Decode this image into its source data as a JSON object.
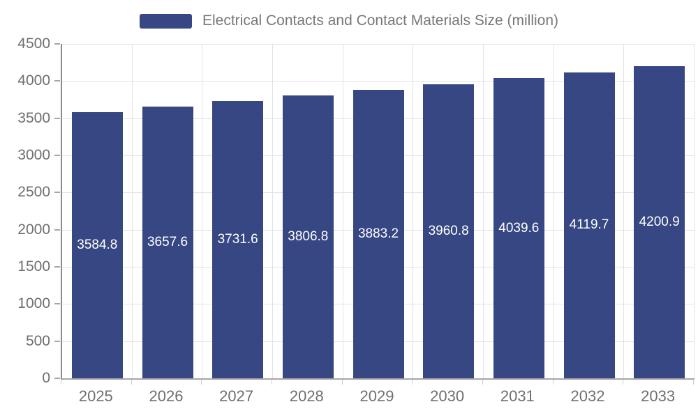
{
  "chart_data": {
    "type": "bar",
    "title": "Electrical Contacts and Contact Materials Size (million)",
    "categories": [
      "2025",
      "2026",
      "2027",
      "2028",
      "2029",
      "2030",
      "2031",
      "2032",
      "2033"
    ],
    "values": [
      3584.8,
      3657.6,
      3731.6,
      3806.8,
      3883.2,
      3960.8,
      4039.6,
      4119.7,
      4200.9
    ],
    "series_name": "Electrical Contacts and Contact Materials Size (million)",
    "xlabel": "",
    "ylabel": "",
    "ylim": [
      0,
      4500
    ],
    "ytick_step": 500,
    "ytick_labels": [
      "0",
      "500",
      "1000",
      "1500",
      "2000",
      "2500",
      "3000",
      "3500",
      "4000",
      "4500"
    ],
    "grid": true,
    "legend_position": "top-center",
    "value_labels_shown": true,
    "value_label_decimals": 1
  },
  "colors": {
    "bar": "#374783",
    "grid": "#e2e2e6",
    "y_axis_line": "#8a8a8a",
    "x_axis_line": "#a6a6a6",
    "title_text": "#777777",
    "axis_tick_text": "#6f6f6f",
    "value_label_text": "#ffffff",
    "background": "#ffffff"
  }
}
